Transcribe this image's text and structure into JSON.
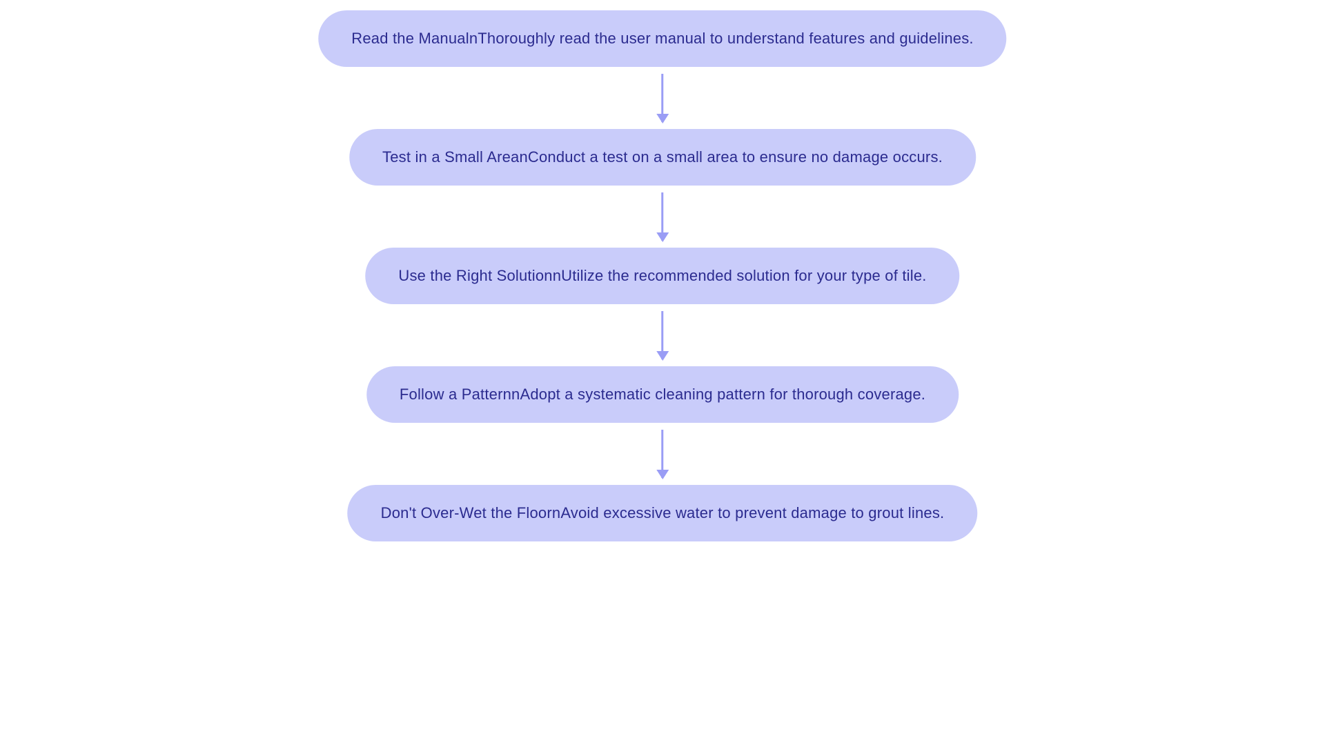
{
  "flowchart": {
    "type": "flowchart",
    "direction": "vertical",
    "background_color": "#ffffff",
    "node_fill": "#c9ccfa",
    "node_text_color": "#2b2b8f",
    "node_fontsize": 22,
    "node_border_radius": 999,
    "node_padding_v": 28,
    "node_padding_h": 48,
    "arrow_color": "#9a9df5",
    "arrow_width": 3,
    "arrow_gap": 90,
    "nodes": [
      {
        "text": "Read the ManualnThoroughly read the user manual to understand features and guidelines."
      },
      {
        "text": "Test in a Small AreanConduct a test on a small area to ensure no damage occurs."
      },
      {
        "text": "Use the Right SolutionnUtilize the recommended solution for your type of tile."
      },
      {
        "text": "Follow a PatternnAdopt a systematic cleaning pattern for thorough coverage."
      },
      {
        "text": "Don't Over-Wet the FloornAvoid excessive water to prevent damage to grout lines."
      }
    ],
    "edges": [
      {
        "from": 0,
        "to": 1
      },
      {
        "from": 1,
        "to": 2
      },
      {
        "from": 2,
        "to": 3
      },
      {
        "from": 3,
        "to": 4
      }
    ]
  }
}
